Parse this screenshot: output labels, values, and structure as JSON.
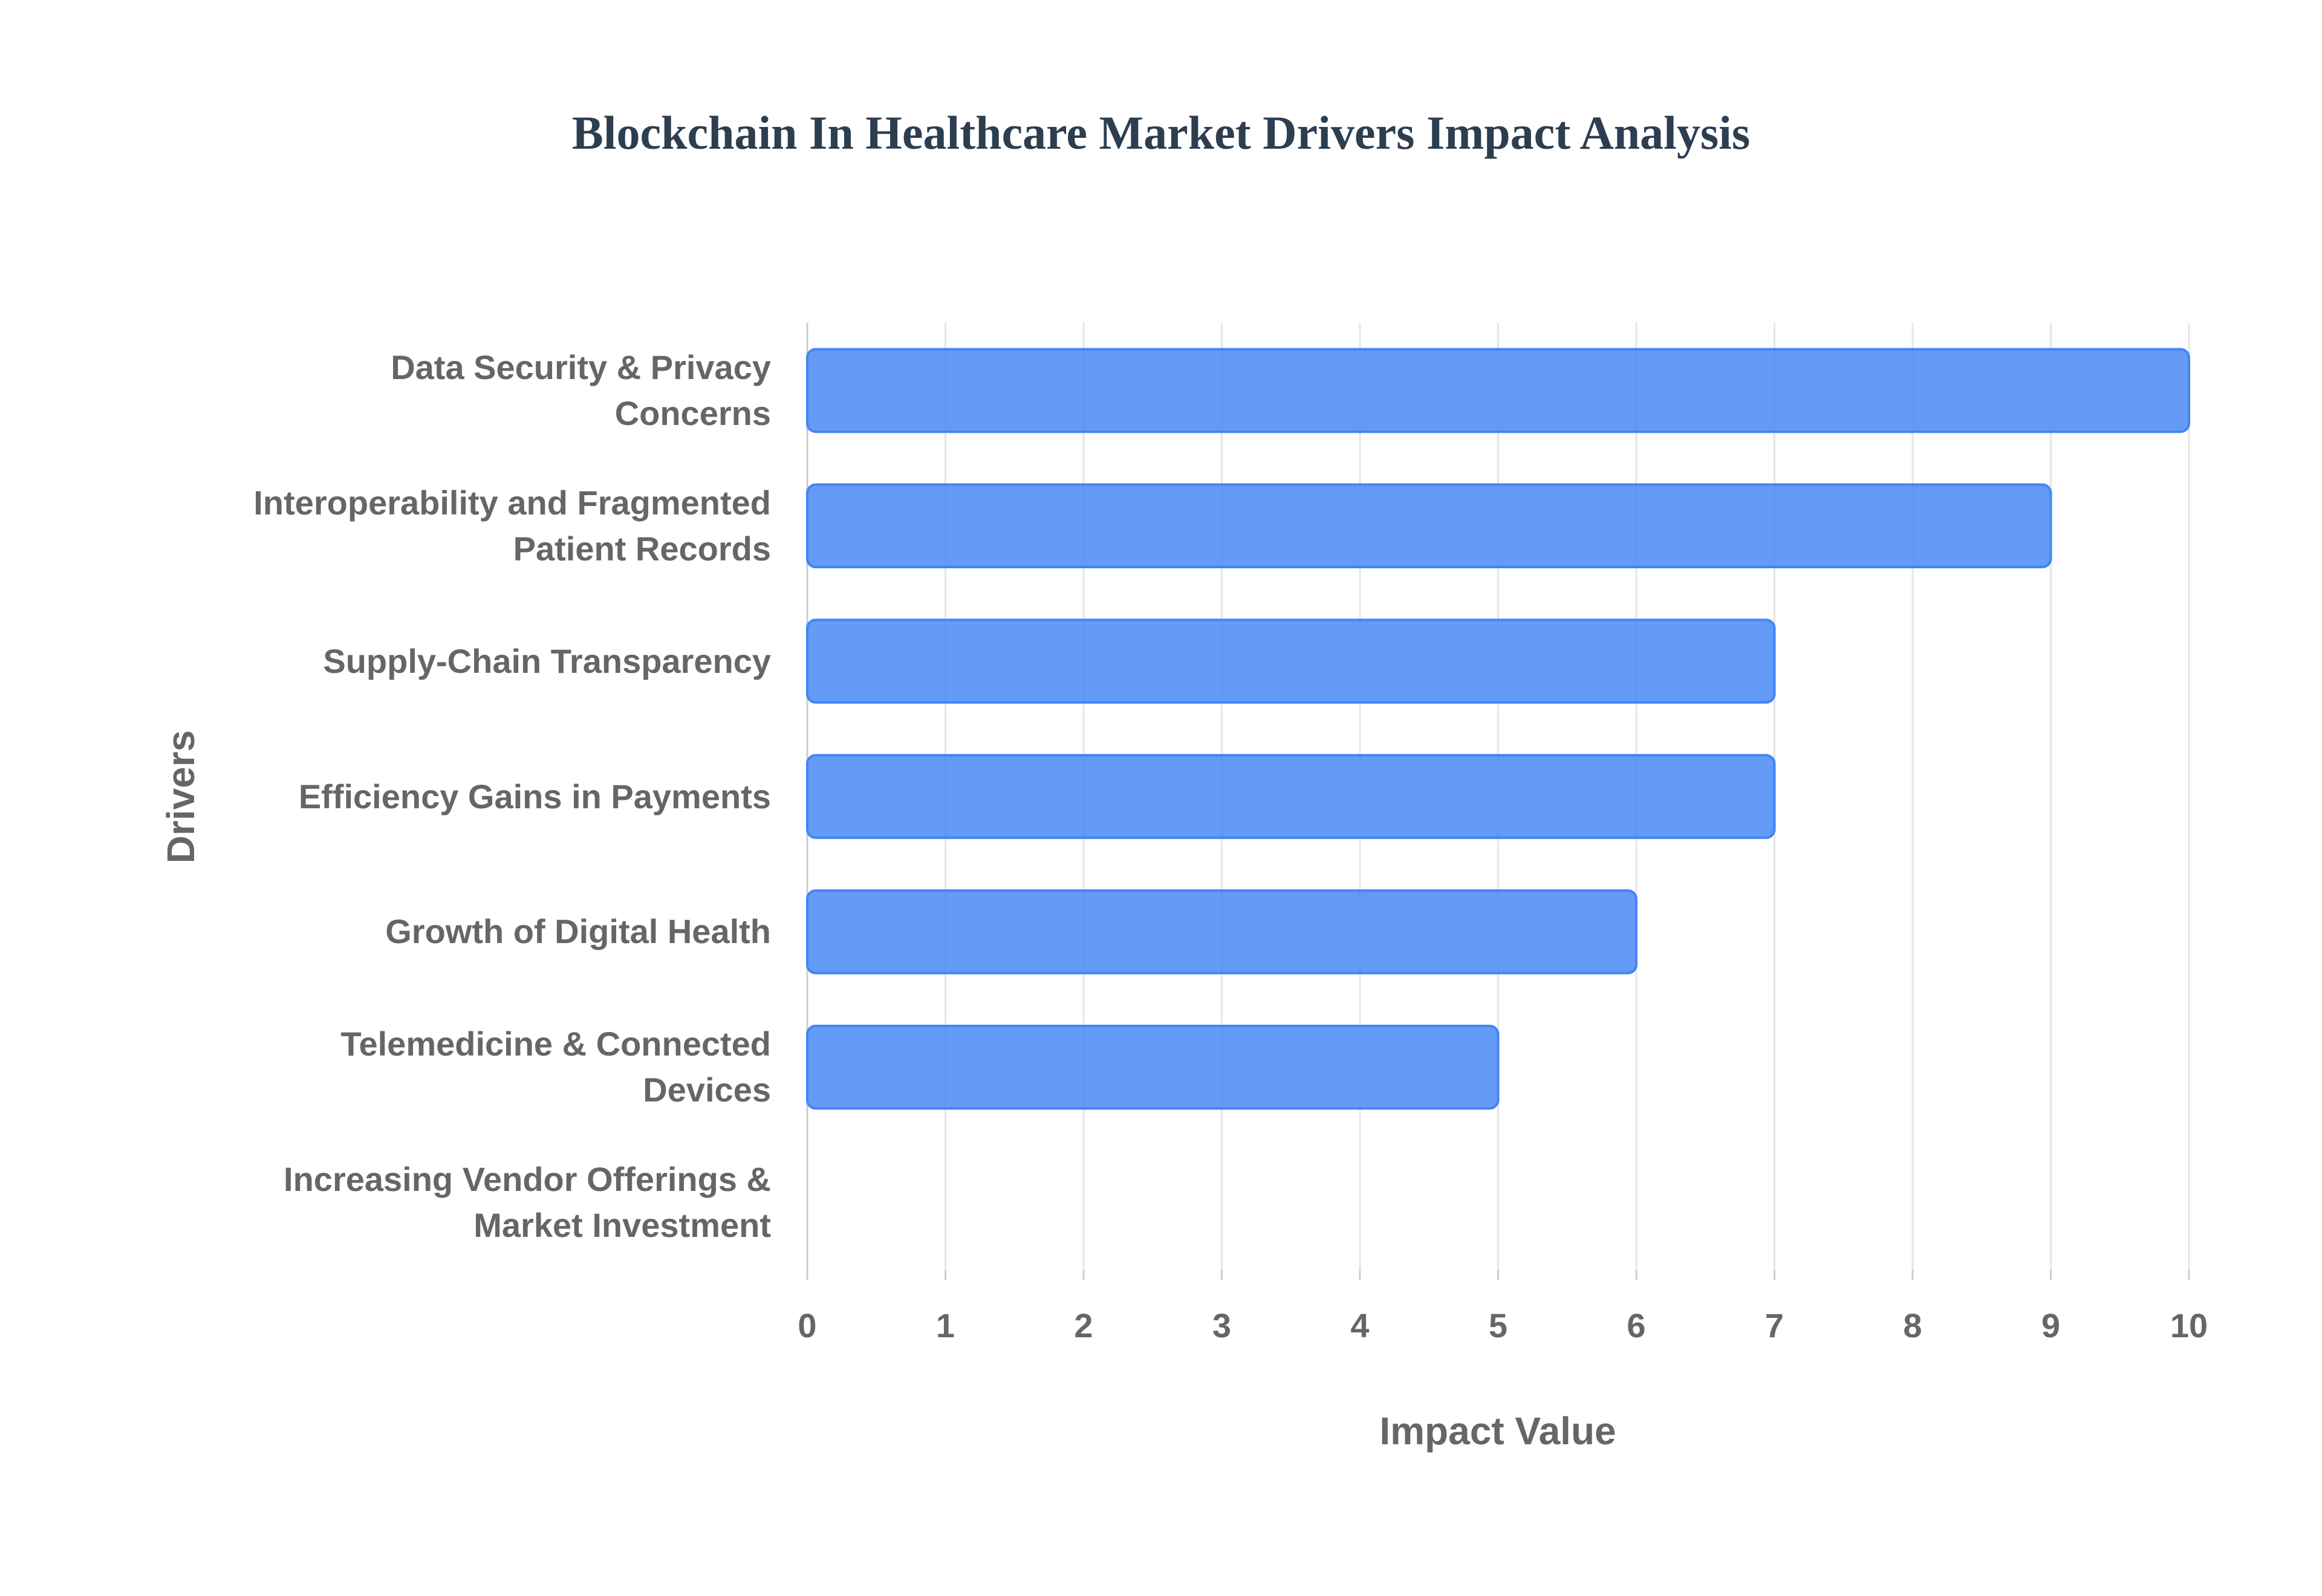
{
  "chart_data": {
    "type": "bar",
    "orientation": "horizontal",
    "title": "Blockchain In Healthcare Market Drivers Impact Analysis",
    "x_label": "Impact Value",
    "y_label": "Drivers",
    "categories": [
      "Data Security & Privacy Concerns",
      "Interoperability and Fragmented Patient Records",
      "Supply-Chain Transparency",
      "Efficiency Gains in Payments",
      "Growth of Digital Health",
      "Telemedicine & Connected Devices",
      "Increasing Vendor Offerings & Market Investment"
    ],
    "values": [
      10,
      9,
      7,
      7,
      6,
      5,
      0
    ],
    "color": "#4285f4",
    "xlim": [
      0,
      10
    ],
    "xticks": [
      0,
      1,
      2,
      3,
      4,
      5,
      6,
      7,
      8,
      9,
      10
    ],
    "grid": true
  }
}
